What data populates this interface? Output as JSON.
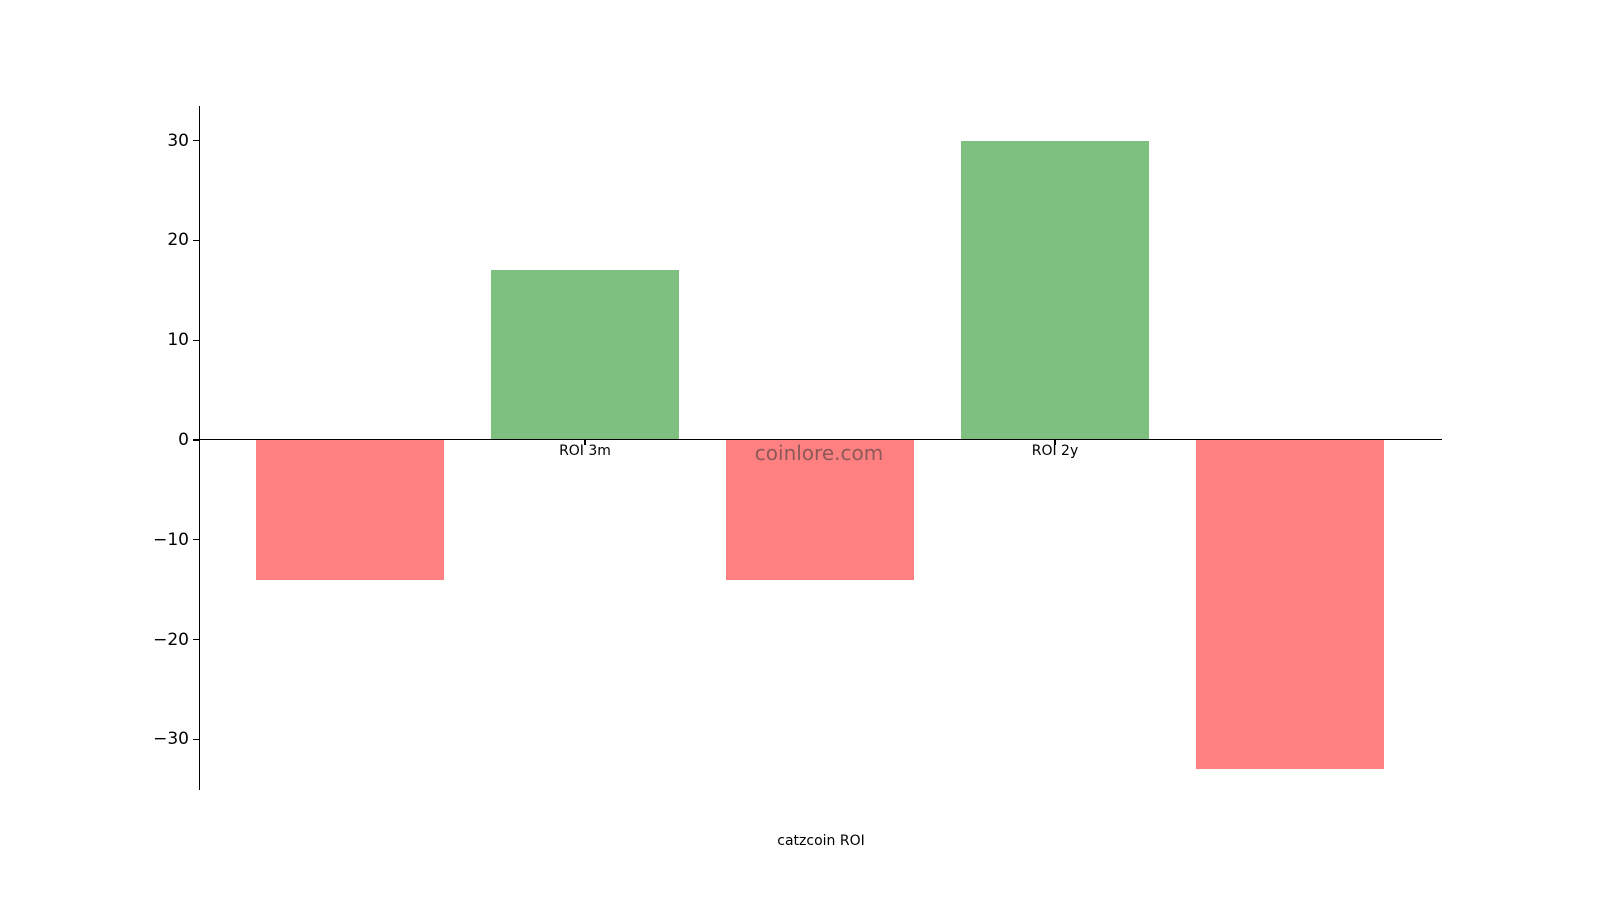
{
  "figure": {
    "watermark": "coinlore.com"
  },
  "chart_data": {
    "type": "bar",
    "title": "catzcoin ROI",
    "categories": [
      "",
      "ROI 3m",
      "",
      "ROI 2y",
      ""
    ],
    "values": [
      -14,
      17,
      -14,
      30,
      -33
    ],
    "y_ticks": [
      30,
      20,
      10,
      0,
      -10,
      -20,
      -30
    ],
    "ylim": [
      -35,
      33.5
    ],
    "xlabel": "",
    "ylabel": "",
    "grid": false,
    "legend": "none",
    "colors": {
      "positive_bar": "#7dc07f",
      "negative_bar": "#ff8080",
      "axis": "#000000",
      "watermark": "rgba(64,64,64,0.6)"
    }
  }
}
